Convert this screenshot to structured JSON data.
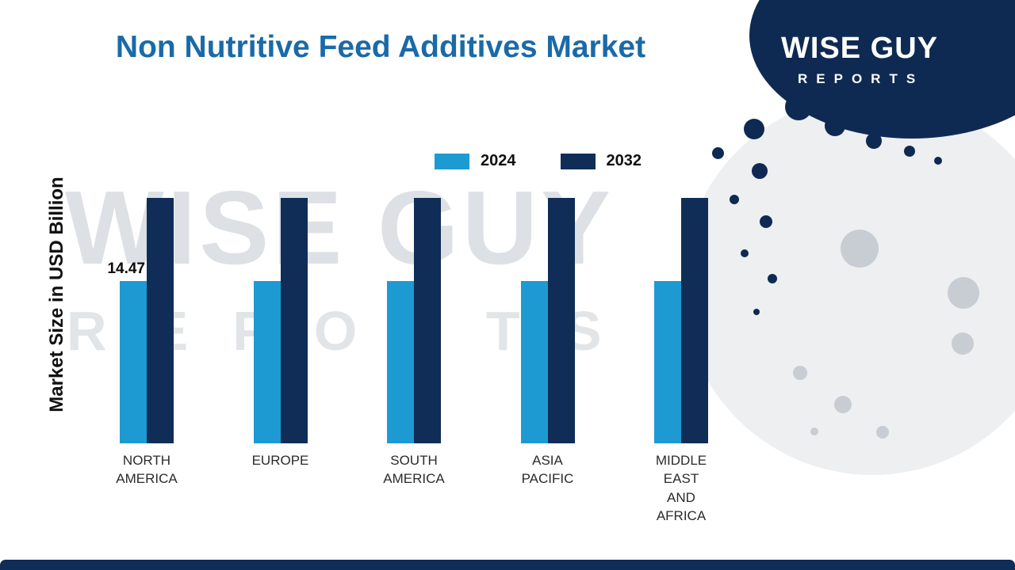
{
  "page": {
    "title": "Non Nutritive Feed Additives Market",
    "y_axis_label": "Market Size in USD Billion"
  },
  "logo": {
    "line1": "WISE GUY",
    "line2": "REPORTS"
  },
  "watermark": {
    "line1": "WISE GUY",
    "line2": "REPORTS"
  },
  "colors": {
    "title": "#1a6aa8",
    "bar_2024": "#1d9ad2",
    "bar_2032": "#0f2d56",
    "footer": "#0f2d56",
    "logo_background": "#0e2a52"
  },
  "chart_data": {
    "type": "bar",
    "title": "Non Nutritive Feed Additives Market",
    "ylabel": "Market Size in USD Billion",
    "xlabel": "",
    "categories": [
      "NORTH AMERICA",
      "EUROPE",
      "SOUTH AMERICA",
      "ASIA PACIFIC",
      "MIDDLE EAST AND AFRICA"
    ],
    "series": [
      {
        "name": "2024",
        "color": "#1d9ad2",
        "values": [
          14.47,
          14.47,
          14.47,
          14.47,
          14.47
        ]
      },
      {
        "name": "2032",
        "color": "#0f2d56",
        "values": [
          21.9,
          21.9,
          21.9,
          21.9,
          21.9
        ]
      }
    ],
    "data_labels": [
      {
        "series": "2024",
        "category": "NORTH AMERICA",
        "text": "14.47"
      }
    ],
    "ylim": [
      0,
      24
    ],
    "grid": false,
    "legend_position": "top"
  }
}
